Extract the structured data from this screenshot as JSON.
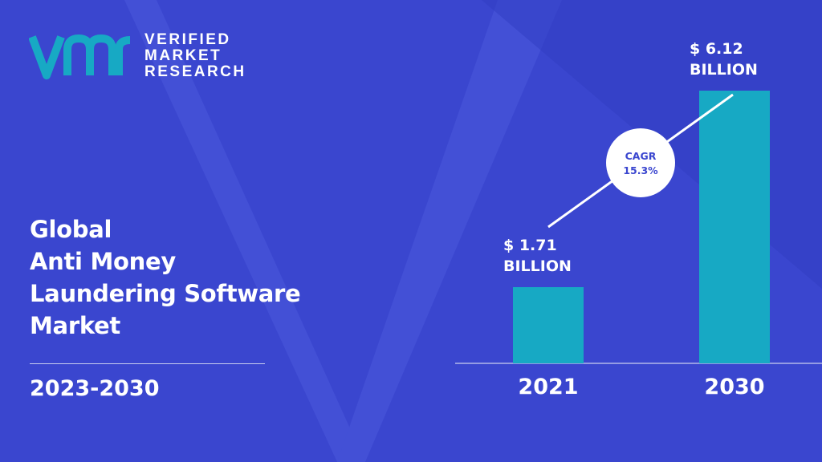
{
  "brand": {
    "line1": "VERIFIED",
    "line2": "MARKET",
    "line3": "RESEARCH",
    "logo_color": "#17a9c4"
  },
  "title_lines": [
    "Global",
    "Anti Money",
    "Laundering Software",
    "Market"
  ],
  "period": "2023-2030",
  "colors": {
    "background": "#3a46cf",
    "bar": "#17a9c4",
    "text": "#ffffff"
  },
  "chart_data": {
    "type": "bar",
    "categories": [
      "2021",
      "2030"
    ],
    "values": [
      1.71,
      6.12
    ],
    "value_labels": [
      [
        "$ 1.71",
        "BILLION"
      ],
      [
        "$ 6.12",
        "BILLION"
      ]
    ],
    "cagr": {
      "label": "CAGR",
      "value": "15.3%"
    },
    "ylim": [
      0,
      6.12
    ],
    "grid": false
  }
}
